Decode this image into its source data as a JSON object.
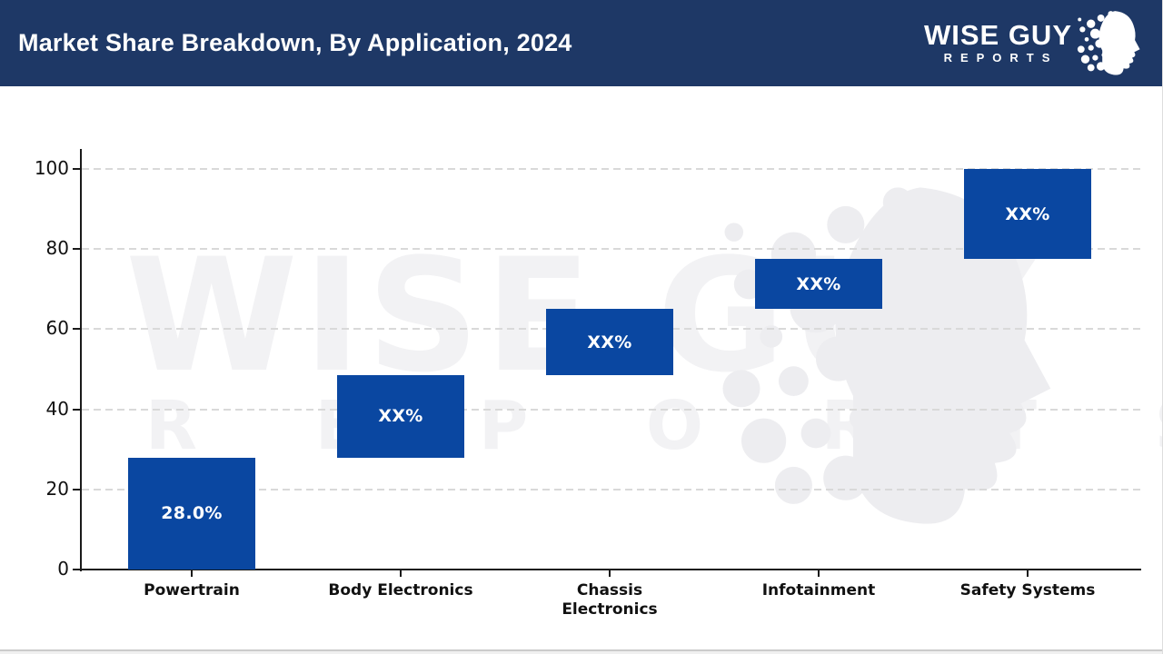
{
  "header": {
    "title": "Market Share Breakdown, By Application, 2024",
    "logo": {
      "brand_line1": "WISE GUY",
      "brand_line2": "REPORTS"
    }
  },
  "watermark": {
    "line1": "WISE GUY",
    "line2": "R E P O R T S"
  },
  "chart_data": {
    "type": "bar",
    "variant": "waterfall-floating-bars",
    "title": "Market Share Breakdown, By Application, 2024",
    "categories": [
      {
        "label": "Powertrain",
        "lines": [
          "Powertrain"
        ]
      },
      {
        "label": "Body Electronics",
        "lines": [
          "Body Electronics"
        ]
      },
      {
        "label": "Chassis Electronics",
        "lines": [
          "Chassis",
          "Electronics"
        ]
      },
      {
        "label": "Infotainment",
        "lines": [
          "Infotainment"
        ]
      },
      {
        "label": "Safety Systems",
        "lines": [
          "Safety Systems"
        ]
      }
    ],
    "bars": [
      {
        "category": "Powertrain",
        "start": 0,
        "end": 28,
        "label": "28.0%"
      },
      {
        "category": "Body Electronics",
        "start": 28,
        "end": 48.5,
        "label": "XX%"
      },
      {
        "category": "Chassis Electronics",
        "start": 48.5,
        "end": 65,
        "label": "XX%"
      },
      {
        "category": "Infotainment",
        "start": 65,
        "end": 77.5,
        "label": "XX%"
      },
      {
        "category": "Safety Systems",
        "start": 77.5,
        "end": 100,
        "label": "XX%"
      }
    ],
    "yticks": [
      0,
      20,
      40,
      60,
      80,
      100
    ],
    "ylim": [
      0,
      105
    ],
    "xlabel": "",
    "ylabel": "",
    "legend": null,
    "grid": {
      "horizontal": true,
      "style": "dashed"
    },
    "bar_color": "#0a47a1",
    "bar_label_color": "#ffffff"
  },
  "colors": {
    "header_bg": "#1e3866",
    "bar": "#0a47a1",
    "axis": "#1a1a1a",
    "gridline": "#d9d9d9",
    "watermark": "#f2f2f4",
    "background": "#ffffff"
  }
}
